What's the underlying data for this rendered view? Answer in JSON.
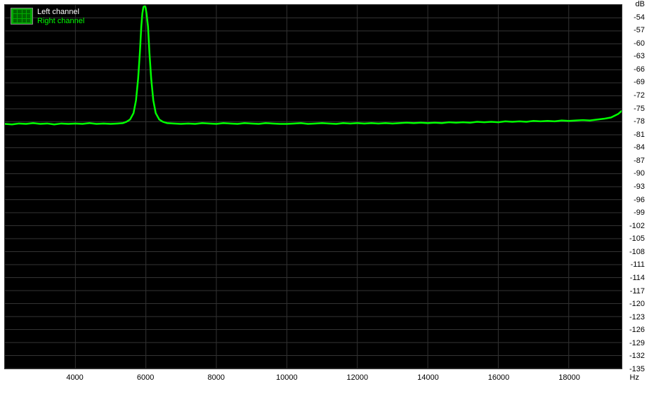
{
  "chart": {
    "type": "line",
    "background_color": "#000000",
    "page_background": "#ffffff",
    "grid_color": "#333333",
    "x_label_unit": "Hz",
    "y_label_unit": "dB",
    "x_axis": {
      "min": 2000,
      "max": 19500,
      "ticks": [
        4000,
        6000,
        8000,
        10000,
        12000,
        14000,
        16000,
        18000
      ]
    },
    "y_axis": {
      "min": -135,
      "max": -51,
      "ticks": [
        -54,
        -57,
        -60,
        -63,
        -66,
        -69,
        -72,
        -75,
        -78,
        -81,
        -84,
        -87,
        -90,
        -93,
        -96,
        -99,
        -102,
        -105,
        -108,
        -111,
        -114,
        -117,
        -120,
        -123,
        -126,
        -129,
        -132,
        -135
      ]
    },
    "legend": {
      "left_label": "Left channel",
      "left_color": "#ffffff",
      "right_label": "Right channel",
      "right_color": "#00ff00"
    },
    "series": [
      {
        "name": "Right channel",
        "color": "#00ff00",
        "line_width": 2.5,
        "points": [
          [
            2000,
            -78.5
          ],
          [
            2200,
            -78.6
          ],
          [
            2400,
            -78.4
          ],
          [
            2600,
            -78.5
          ],
          [
            2800,
            -78.3
          ],
          [
            3000,
            -78.5
          ],
          [
            3200,
            -78.4
          ],
          [
            3400,
            -78.6
          ],
          [
            3600,
            -78.4
          ],
          [
            3800,
            -78.5
          ],
          [
            4000,
            -78.4
          ],
          [
            4200,
            -78.5
          ],
          [
            4400,
            -78.3
          ],
          [
            4600,
            -78.5
          ],
          [
            4800,
            -78.4
          ],
          [
            5000,
            -78.5
          ],
          [
            5200,
            -78.4
          ],
          [
            5350,
            -78.3
          ],
          [
            5450,
            -78.0
          ],
          [
            5550,
            -77.5
          ],
          [
            5650,
            -76.0
          ],
          [
            5720,
            -73.0
          ],
          [
            5780,
            -68.0
          ],
          [
            5830,
            -62.0
          ],
          [
            5870,
            -56.0
          ],
          [
            5900,
            -53.0
          ],
          [
            5930,
            -51.5
          ],
          [
            5960,
            -51.3
          ],
          [
            5990,
            -51.5
          ],
          [
            6020,
            -53.0
          ],
          [
            6060,
            -56.0
          ],
          [
            6100,
            -62.0
          ],
          [
            6150,
            -68.0
          ],
          [
            6210,
            -73.0
          ],
          [
            6280,
            -76.0
          ],
          [
            6380,
            -77.5
          ],
          [
            6480,
            -78.0
          ],
          [
            6600,
            -78.3
          ],
          [
            6800,
            -78.4
          ],
          [
            7000,
            -78.5
          ],
          [
            7200,
            -78.4
          ],
          [
            7400,
            -78.5
          ],
          [
            7600,
            -78.3
          ],
          [
            7800,
            -78.4
          ],
          [
            8000,
            -78.5
          ],
          [
            8200,
            -78.3
          ],
          [
            8400,
            -78.4
          ],
          [
            8600,
            -78.5
          ],
          [
            8800,
            -78.3
          ],
          [
            9000,
            -78.4
          ],
          [
            9200,
            -78.5
          ],
          [
            9400,
            -78.3
          ],
          [
            9600,
            -78.4
          ],
          [
            9800,
            -78.5
          ],
          [
            10000,
            -78.5
          ],
          [
            10200,
            -78.4
          ],
          [
            10400,
            -78.3
          ],
          [
            10600,
            -78.5
          ],
          [
            10800,
            -78.4
          ],
          [
            11000,
            -78.3
          ],
          [
            11200,
            -78.4
          ],
          [
            11400,
            -78.5
          ],
          [
            11600,
            -78.3
          ],
          [
            11800,
            -78.4
          ],
          [
            12000,
            -78.3
          ],
          [
            12200,
            -78.4
          ],
          [
            12400,
            -78.3
          ],
          [
            12600,
            -78.4
          ],
          [
            12800,
            -78.3
          ],
          [
            13000,
            -78.4
          ],
          [
            13200,
            -78.3
          ],
          [
            13400,
            -78.2
          ],
          [
            13600,
            -78.3
          ],
          [
            13800,
            -78.2
          ],
          [
            14000,
            -78.3
          ],
          [
            14200,
            -78.2
          ],
          [
            14400,
            -78.3
          ],
          [
            14600,
            -78.1
          ],
          [
            14800,
            -78.2
          ],
          [
            15000,
            -78.1
          ],
          [
            15200,
            -78.2
          ],
          [
            15400,
            -78.0
          ],
          [
            15600,
            -78.1
          ],
          [
            15800,
            -78.0
          ],
          [
            16000,
            -78.1
          ],
          [
            16200,
            -77.9
          ],
          [
            16400,
            -78.0
          ],
          [
            16600,
            -77.9
          ],
          [
            16800,
            -78.0
          ],
          [
            17000,
            -77.8
          ],
          [
            17200,
            -77.9
          ],
          [
            17400,
            -77.8
          ],
          [
            17600,
            -77.9
          ],
          [
            17800,
            -77.7
          ],
          [
            18000,
            -77.8
          ],
          [
            18200,
            -77.7
          ],
          [
            18400,
            -77.6
          ],
          [
            18600,
            -77.7
          ],
          [
            18800,
            -77.5
          ],
          [
            19000,
            -77.3
          ],
          [
            19200,
            -77.0
          ],
          [
            19400,
            -76.2
          ],
          [
            19500,
            -75.5
          ]
        ]
      }
    ],
    "label_fontsize": 11,
    "label_color": "#000000"
  }
}
